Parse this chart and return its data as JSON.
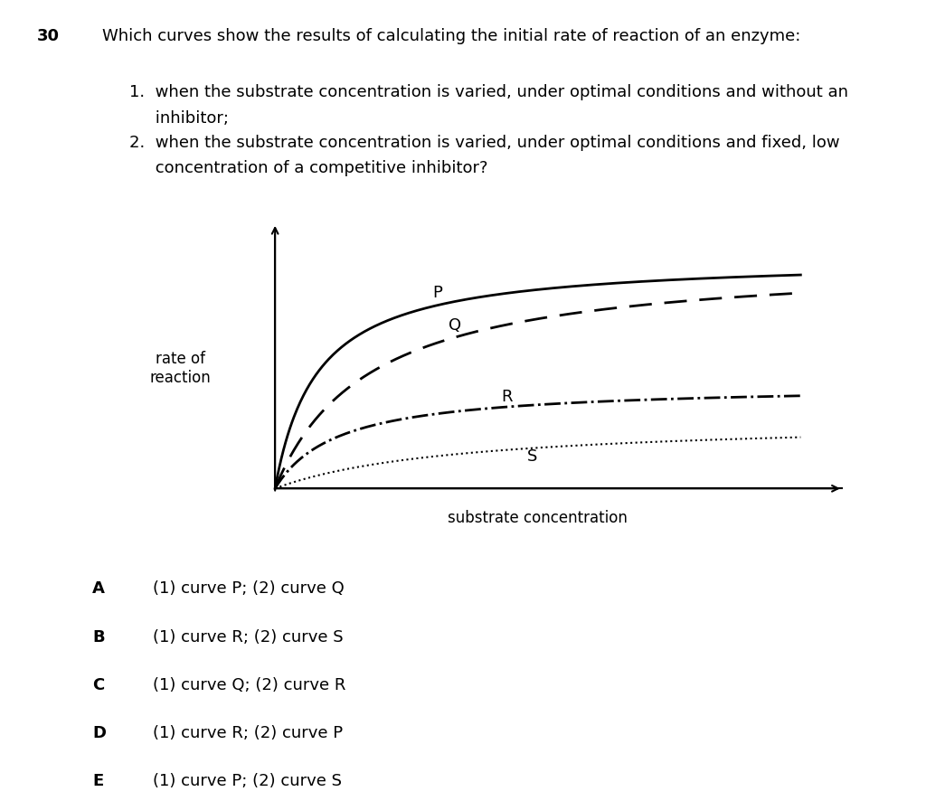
{
  "title_number": "30",
  "title_text": "Which curves show the results of calculating the initial rate of reaction of an enzyme:",
  "question_item1_line1": "1.  when the substrate concentration is varied, under optimal conditions and without an",
  "question_item1_line2": "     inhibitor;",
  "question_item2_line1": "2.  when the substrate concentration is varied, under optimal conditions and fixed, low",
  "question_item2_line2": "     concentration of a competitive inhibitor?",
  "ylabel": "rate of\nreaction",
  "xlabel": "substrate concentration",
  "curve_labels": [
    "P",
    "Q",
    "R",
    "S"
  ],
  "curves": {
    "P": {
      "Vmax": 1.0,
      "Km": 0.8,
      "linestyle": "solid"
    },
    "Q": {
      "Vmax": 1.0,
      "Km": 1.8,
      "linestyle": "dashed"
    },
    "R": {
      "Vmax": 0.45,
      "Km": 1.2,
      "linestyle": "dashdot"
    },
    "S": {
      "Vmax": 0.3,
      "Km": 3.5,
      "linestyle": "dotted"
    }
  },
  "options": [
    [
      "A",
      "(1) curve P; (2) curve Q"
    ],
    [
      "B",
      "(1) curve R; (2) curve S"
    ],
    [
      "C",
      "(1) curve Q; (2) curve R"
    ],
    [
      "D",
      "(1) curve R; (2) curve P"
    ],
    [
      "E",
      "(1) curve P; (2) curve S"
    ]
  ],
  "background_color": "#ffffff",
  "text_color": "#000000",
  "font_size": 13,
  "lw": 2.0
}
